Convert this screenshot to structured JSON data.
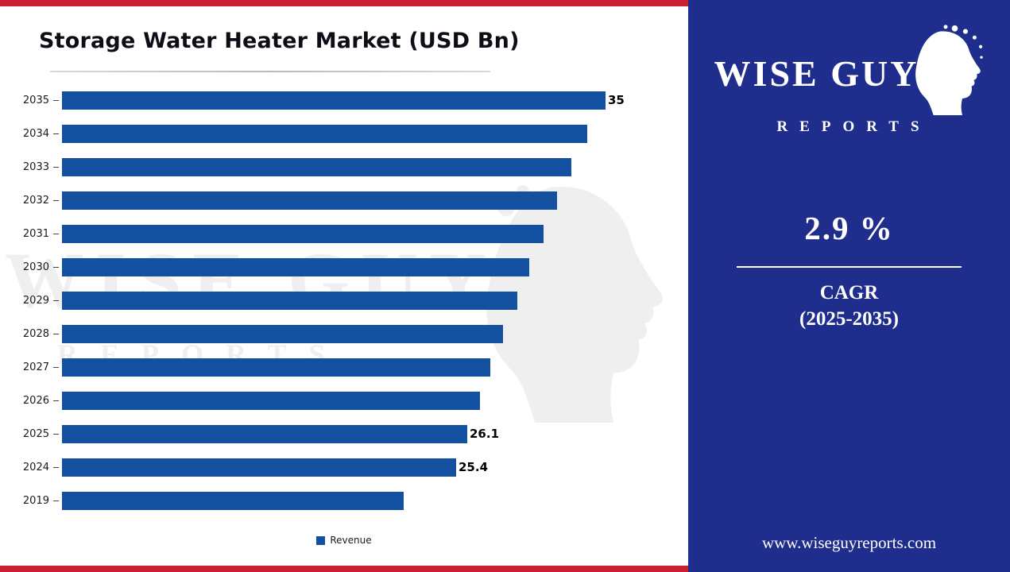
{
  "colors": {
    "bar": "#1450a0",
    "panel_bg": "#1f2d8c",
    "accent_red": "#c8202f",
    "title_text": "#0d0d16",
    "watermark": "#efefef"
  },
  "chart_data": {
    "type": "bar",
    "orientation": "horizontal",
    "title": "Storage Water Heater Market (USD Bn)",
    "xlabel": "",
    "ylabel": "",
    "xlim": [
      0,
      36
    ],
    "grid": false,
    "legend_position": "bottom-center",
    "legend": [
      "Revenue"
    ],
    "categories": [
      "2035",
      "2034",
      "2033",
      "2032",
      "2031",
      "2030",
      "2029",
      "2028",
      "2027",
      "2026",
      "2025",
      "2024",
      "2019"
    ],
    "values": [
      35,
      33.8,
      32.8,
      31.9,
      31.0,
      30.1,
      29.3,
      28.4,
      27.6,
      26.9,
      26.1,
      25.4,
      22.0
    ],
    "data_labels": {
      "2035": "35",
      "2025": "26.1",
      "2024": "25.4"
    }
  },
  "watermark": {
    "line1": "WISE GUY",
    "line2": "REPORTS"
  },
  "panel": {
    "logo_line1": "WISE GUY",
    "logo_line2": "REPORTS",
    "cagr_value": "2.9 %",
    "cagr_label": "CAGR",
    "cagr_period": "(2025-2035)",
    "website": "www.wiseguyreports.com"
  }
}
